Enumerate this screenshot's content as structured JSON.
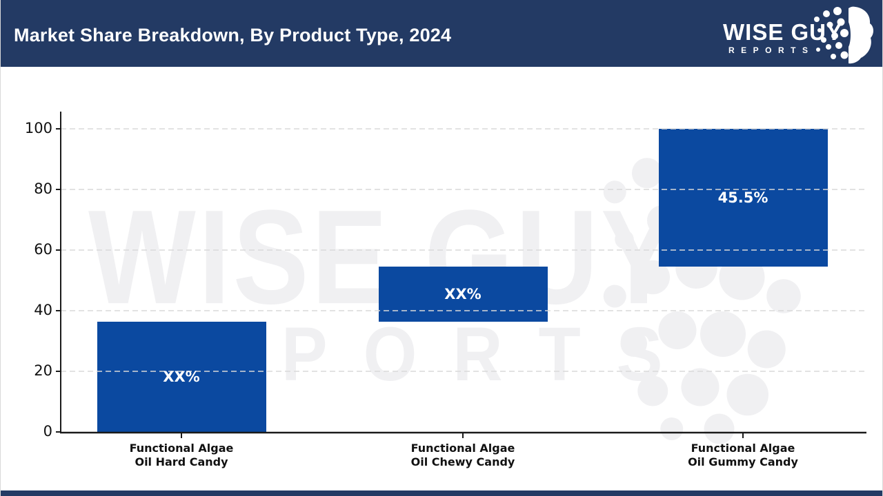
{
  "header": {
    "title": "Market Share Breakdown, By Product Type, 2024",
    "bg_color": "#233a64",
    "logo": {
      "line1": "WISE GUY",
      "line2": "REPORTS"
    }
  },
  "watermark": {
    "line1": "WISE GUY",
    "line2": "REPORTS"
  },
  "footer": {
    "bg_color": "#233a64"
  },
  "chart_data": {
    "type": "bar",
    "subtype": "floating-waterfall-percentage",
    "title": "Market Share Breakdown, By Product Type, 2024",
    "categories": [
      {
        "line1": "Functional Algae",
        "line2": "Oil Hard Candy"
      },
      {
        "line1": "Functional Algae",
        "line2": "Oil Chewy Candy"
      },
      {
        "line1": "Functional Algae",
        "line2": "Oil Gummy Candy"
      }
    ],
    "segments": [
      {
        "category": "Functional Algae Oil Hard Candy",
        "start": 0,
        "end": 36.4,
        "value": 36.4,
        "label": "XX%"
      },
      {
        "category": "Functional Algae Oil Chewy Candy",
        "start": 36.4,
        "end": 54.5,
        "value": 18.1,
        "label": "XX%"
      },
      {
        "category": "Functional Algae Oil Gummy Candy",
        "start": 54.5,
        "end": 100,
        "value": 45.5,
        "label": "45.5%"
      }
    ],
    "ylim": [
      0,
      100
    ],
    "yticks": [
      0,
      20,
      40,
      60,
      80,
      100
    ],
    "xlabel": "",
    "ylabel": "",
    "grid": "dashed-horizontal-over-bars",
    "grid_color": "#d9d9d9",
    "axis_color": "#1a1a1a",
    "bar_color": "#0b49a0",
    "bar_label_color": "#ffffff",
    "legend": "none"
  }
}
